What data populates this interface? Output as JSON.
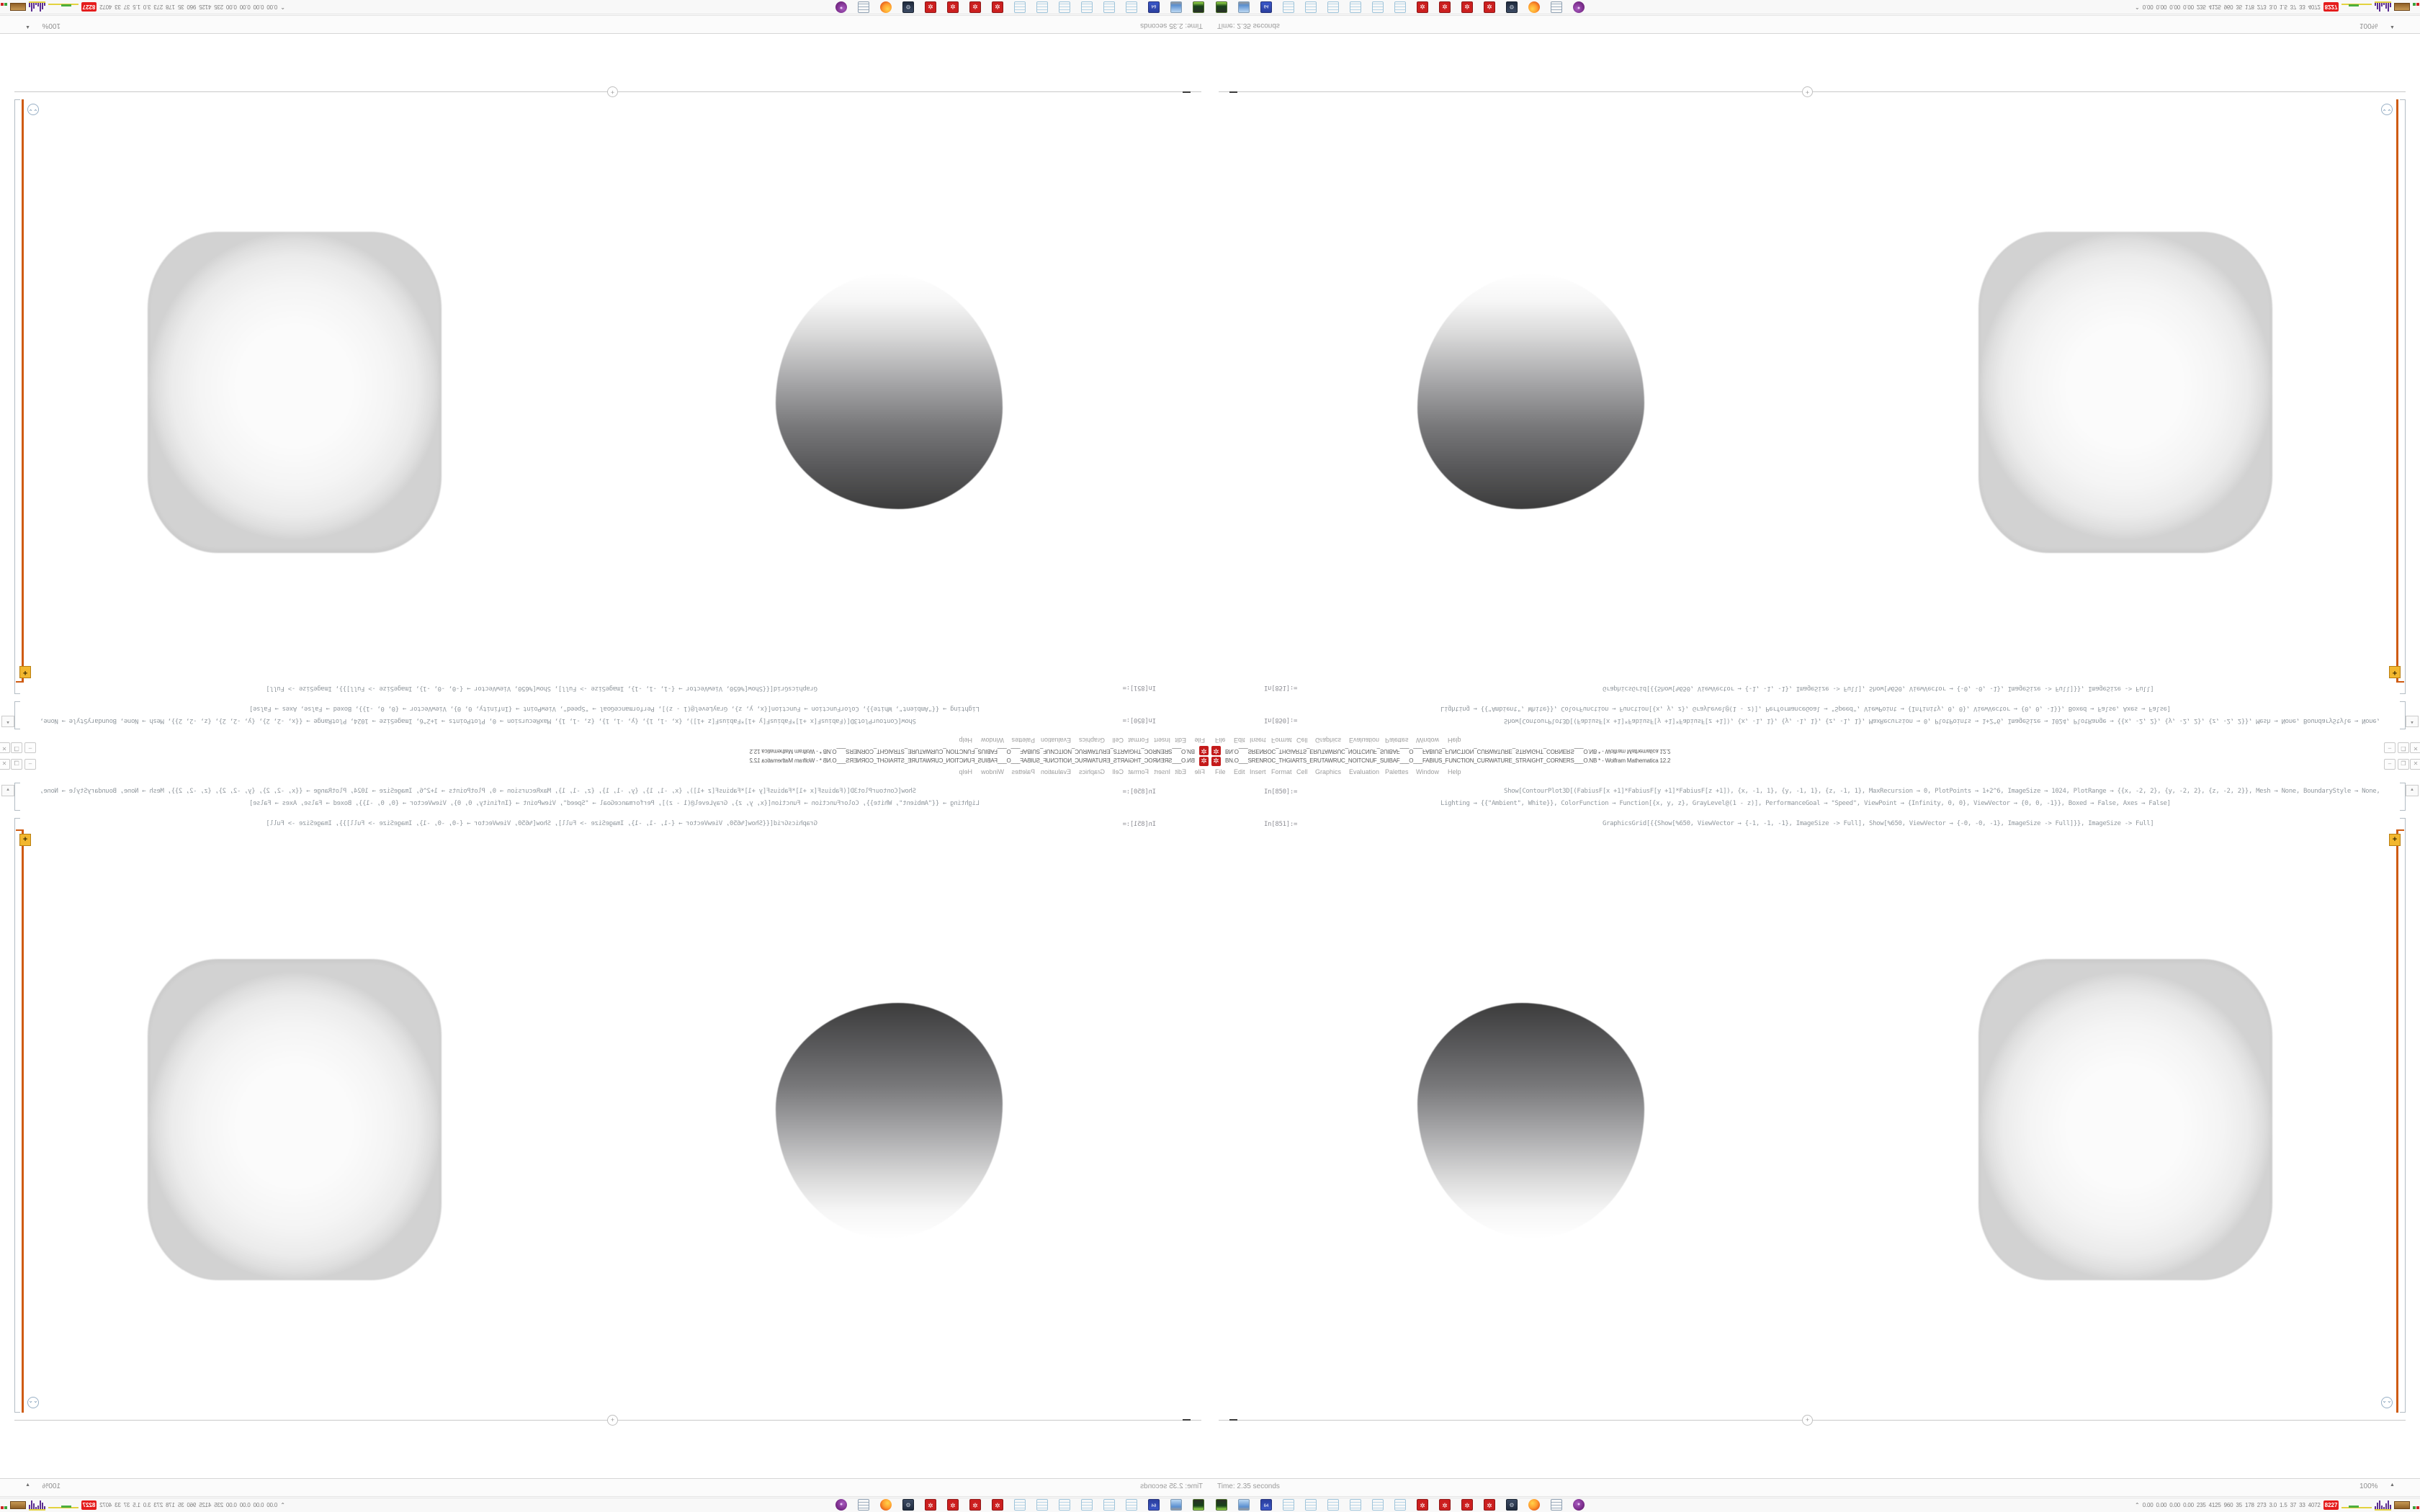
{
  "window": {
    "title": "BN.O___SRENROC_THGIARTS_ERUTAWRUC_NOITCNUF_SUIBAF___O___FABIUS_FUNCTION_CURWATURE_STRAIGHT_CORNERS___O.NB * - Wolfram Mathematica 12.2",
    "app_icon_glyph": "✲",
    "controls": {
      "minimize": "–",
      "restore": "❐",
      "close": "✕"
    },
    "menu": [
      "File",
      "Edit",
      "Insert",
      "Format",
      "Cell",
      "Graphics",
      "Evaluation",
      "Palettes",
      "Window",
      "Help"
    ]
  },
  "cells": {
    "in850_label": "In[850]:=",
    "in850_line1": "Show[ContourPlot3D[(FabiusF[x +1]*FabiusF[y +1]*FabiusF[z +1]), {x, -1, 1}, {y, -1, 1}, {z, -1, 1}, MaxRecursion → 0, PlotPoints → 1+2^6, ImageSize → 1024, PlotRange → {{x, -2, 2}, {y, -2, 2}, {z, -2, 2}}, Mesh → None, BoundaryStyle → None,",
    "in850_line2": "Lighting → {{\"Ambient\", White}}, ColorFunction → Function[{x, y, z}, GrayLevel@(1 - z)], PerformanceGoal → \"Speed\", ViewPoint → {Infinity, 0, 0}, ViewVector → {0, 0, -1}}, Boxed → False, Axes → False]",
    "in851_label": "In[851]:=",
    "in851_code": "GraphicsGrid[{{Show[%650, ViewVector → {-1, -1, -1}, ImageSize -> Full], Show[%650, ViewVector → {-0, -0, -1}, ImageSize -> Full]}}, ImageSize -> Full]",
    "bracket_plus": "+",
    "insert_plus": "+",
    "scroll_up_glyph": "▲",
    "chevron_glyph": "⌄⌄"
  },
  "statusbar": {
    "time": "Time: 2.35 seconds",
    "zoom": "100%",
    "zoom_arrow": "▲"
  },
  "taskbar": {
    "icons": [
      {
        "name": "package-manager-icon",
        "glyph": ""
      },
      {
        "name": "computer-icon",
        "glyph": ""
      },
      {
        "name": "floppy-disk-icon",
        "glyph": "64"
      },
      {
        "name": "notepad-icon-1",
        "glyph": ""
      },
      {
        "name": "notepad-icon-2",
        "glyph": ""
      },
      {
        "name": "notepad-icon-3",
        "glyph": ""
      },
      {
        "name": "notepad-icon-4",
        "glyph": ""
      },
      {
        "name": "notepad-icon-5",
        "glyph": ""
      },
      {
        "name": "notepad-icon-6",
        "glyph": ""
      },
      {
        "name": "mathematica-kernel-icon-1",
        "glyph": "✲"
      },
      {
        "name": "mathematica-kernel-icon-2",
        "glyph": "✲"
      },
      {
        "name": "mathematica-kernel-icon-3",
        "glyph": "✲"
      },
      {
        "name": "mathematica-kernel-icon-4",
        "glyph": "✲"
      },
      {
        "name": "system-monitor-icon",
        "glyph": "⚙"
      },
      {
        "name": "firefox-icon",
        "glyph": ""
      },
      {
        "name": "document-scroll-icon",
        "glyph": ""
      },
      {
        "name": "purple-app-icon",
        "glyph": "●"
      }
    ],
    "tray": {
      "expander": "⌃",
      "stats": "0.00 0.00 0.00 0.00 235 4125 960  35  178 273  3.0  1.5  37  33  4072",
      "badge": "8227",
      "cpu_bars": [
        4,
        9,
        12,
        5,
        3,
        8,
        12,
        6
      ]
    }
  },
  "colors": {
    "accent_orange": "#cf5b12",
    "plus_box_yellow": "#f2b72e",
    "kernel_red": "#cc1f1f",
    "badge_red": "#e51c1c"
  }
}
